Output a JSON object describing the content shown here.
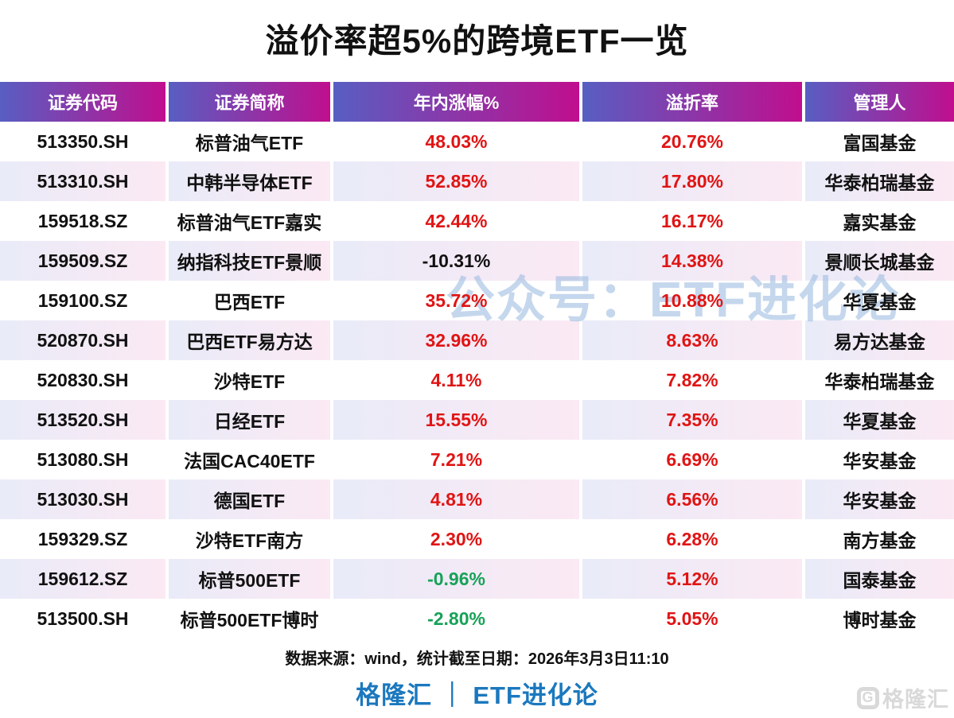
{
  "title": "溢价率超5%的跨境ETF一览",
  "watermark": "公众号：ETF进化论",
  "chart_data": {
    "type": "table",
    "title": "溢价率超5%的跨境ETF一览",
    "columns": [
      "证券代码",
      "证券简称",
      "年内涨幅%",
      "溢折率",
      "管理人"
    ],
    "rows": [
      [
        "513350.SH",
        "标普油气ETF",
        "48.03%",
        "20.76%",
        "富国基金"
      ],
      [
        "513310.SH",
        "中韩半导体ETF",
        "52.85%",
        "17.80%",
        "华泰柏瑞基金"
      ],
      [
        "159518.SZ",
        "标普油气ETF嘉实",
        "42.44%",
        "16.17%",
        "嘉实基金"
      ],
      [
        "159509.SZ",
        "纳指科技ETF景顺",
        "-10.31%",
        "14.38%",
        "景顺长城基金"
      ],
      [
        "159100.SZ",
        "巴西ETF",
        "35.72%",
        "10.88%",
        "华夏基金"
      ],
      [
        "520870.SH",
        "巴西ETF易方达",
        "32.96%",
        "8.63%",
        "易方达基金"
      ],
      [
        "520830.SH",
        "沙特ETF",
        "4.11%",
        "7.82%",
        "华泰柏瑞基金"
      ],
      [
        "513520.SH",
        "日经ETF",
        "15.55%",
        "7.35%",
        "华夏基金"
      ],
      [
        "513080.SH",
        "法国CAC40ETF",
        "7.21%",
        "6.69%",
        "华安基金"
      ],
      [
        "513030.SH",
        "德国ETF",
        "4.81%",
        "6.56%",
        "华安基金"
      ],
      [
        "159329.SZ",
        "沙特ETF南方",
        "2.30%",
        "6.28%",
        "南方基金"
      ],
      [
        "159612.SZ",
        "标普500ETF",
        "-0.96%",
        "5.12%",
        "国泰基金"
      ],
      [
        "513500.SH",
        "标普500ETF博时",
        "-2.80%",
        "5.05%",
        "博时基金"
      ]
    ],
    "ytd_value_colors": [
      "red",
      "red",
      "red",
      "black",
      "red",
      "red",
      "red",
      "red",
      "red",
      "red",
      "red",
      "green",
      "green"
    ],
    "premium_value_colors": [
      "red",
      "red",
      "red",
      "red",
      "red",
      "red",
      "red",
      "red",
      "red",
      "red",
      "red",
      "red",
      "red"
    ]
  },
  "colors": {
    "title_text": "#111111",
    "header_gradient_from": "#585EC2",
    "header_gradient_to": "#C00E8E",
    "even_row_gradient_from": "#E9EBF8",
    "even_row_gradient_to": "#FBE9F3",
    "positive_value": "#E01414",
    "negative_value": "#17A258",
    "brand_blue": "#1B78BE",
    "watermark_blue": "#9FBDE2",
    "corner_logo_gray": "#D9D9D9"
  },
  "footer": {
    "source_note": "数据来源：wind，统计截至日期：2026年3月3日11:10",
    "brand": "格隆汇 ｜ ETF进化论",
    "corner_logo_letter": "G",
    "corner_logo_text": "格隆汇"
  }
}
